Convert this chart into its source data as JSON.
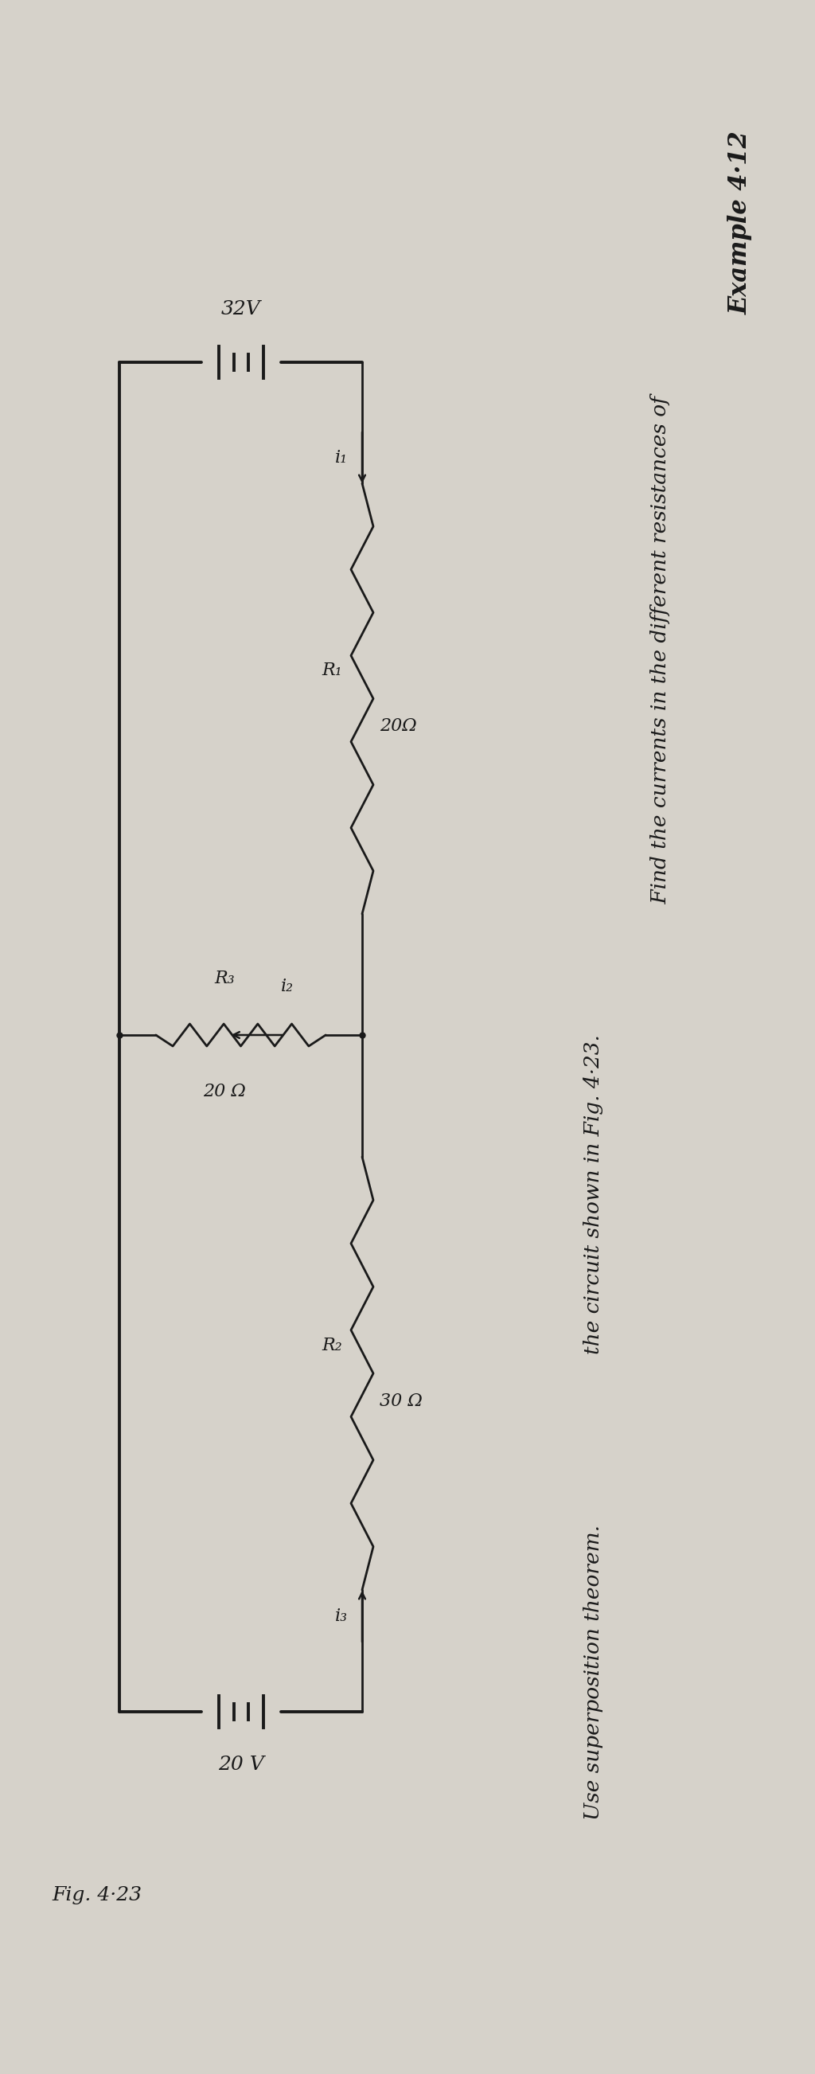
{
  "title_bold": "Example 4·12",
  "title_italic_rest": " Find the currents in the different resistances of",
  "title_line2": "the circuit shown in Fig. 4·23.",
  "title_line3": "Use superposition theorem.",
  "fig_label": "Fig. 4·23",
  "background_color": "#d6d2ca",
  "V1": "32V",
  "V2": "20 V",
  "R1_label": "20Ω",
  "R1_name": "R₁",
  "R2_label": "30 Ω",
  "R2_name": "R₂",
  "R3_label": "20 Ω",
  "R3_name": "R₃",
  "i1_label": "i₁",
  "i2_label": "i₂",
  "i3_label": "i₃",
  "line_color": "#1a1a1a",
  "text_color": "#1a1a1a"
}
